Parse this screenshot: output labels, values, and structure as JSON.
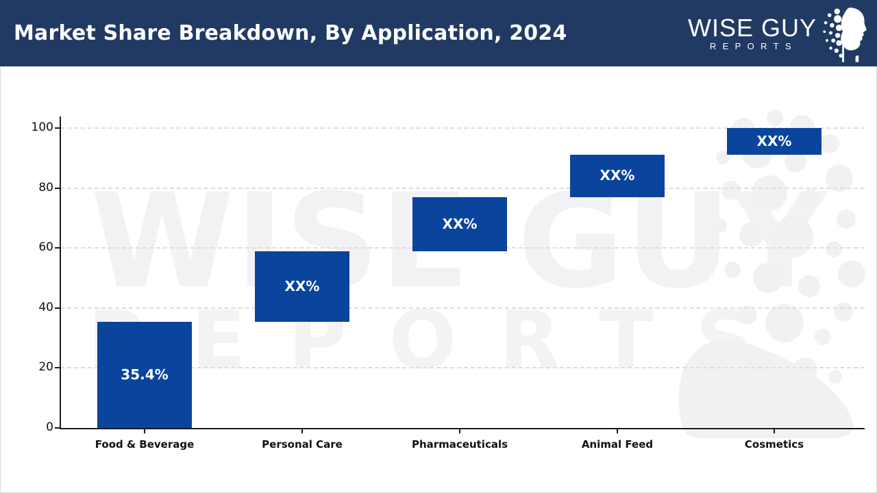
{
  "header": {
    "title": "Market Share Breakdown, By Application, 2024",
    "background_color": "#213a63",
    "logo": {
      "line1": "WISE GUY",
      "line2": "REPORTS",
      "icon": "dotted-head-profile-icon"
    }
  },
  "watermark": {
    "line1": "WISE GUY",
    "line2": "REPORTS",
    "icon": "dotted-head-profile-icon",
    "color": "#f2f2f4"
  },
  "chart_data": {
    "type": "bar",
    "subtype": "floating-waterfall",
    "title": "Market Share Breakdown, By Application, 2024",
    "categories": [
      "Food & Beverage",
      "Personal Care",
      "Pharmaceuticals",
      "Animal Feed",
      "Cosmetics"
    ],
    "segments": [
      {
        "category": "Food & Beverage",
        "start": 0,
        "end": 35.4,
        "label": "35.4%"
      },
      {
        "category": "Personal Care",
        "start": 35.4,
        "end": 59,
        "label": "XX%"
      },
      {
        "category": "Pharmaceuticals",
        "start": 59,
        "end": 77,
        "label": "XX%"
      },
      {
        "category": "Animal Feed",
        "start": 77,
        "end": 91,
        "label": "XX%"
      },
      {
        "category": "Cosmetics",
        "start": 91,
        "end": 100,
        "label": "XX%"
      }
    ],
    "yticks": [
      0,
      20,
      40,
      60,
      80,
      100
    ],
    "ylim": [
      0,
      100
    ],
    "xlabel": "",
    "ylabel": "",
    "grid": "horizontal-dashed",
    "legend": "none",
    "bar_color": "#0a449c",
    "bar_label_color": "#ffffff",
    "axis_color": "#1a1a1a",
    "gridline_color": "#dcdcdc"
  }
}
